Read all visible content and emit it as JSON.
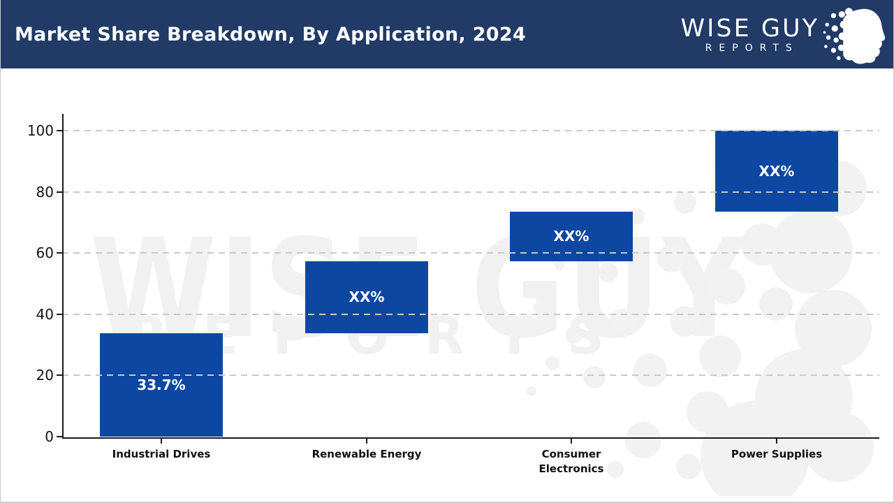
{
  "header": {
    "title": "Market Share Breakdown, By Application, 2024",
    "logo": {
      "line1": "WISE GUY",
      "line2": "REPORTS"
    }
  },
  "watermark": {
    "line1": "WISE GUY",
    "line2": "REPORTS"
  },
  "colors": {
    "header_bg": "#213a66",
    "bar_fill": "#0d47a1",
    "bar_label_text": "#ffffff",
    "gridline": "#c9c9c9",
    "axis": "#1a1a1a",
    "watermark": "#f1f1f1"
  },
  "chart_data": {
    "type": "bar",
    "subtype": "waterfall",
    "title": "Market Share Breakdown, By Application, 2024",
    "xlabel": "",
    "ylabel": "",
    "categories": [
      "Industrial Drives",
      "Renewable Energy",
      "Consumer Electronics",
      "Power Supplies"
    ],
    "bars": [
      {
        "category": "Industrial Drives",
        "category_lines": [
          "Industrial Drives"
        ],
        "start": 0,
        "end": 33.7,
        "value": 33.7,
        "label": "33.7%"
      },
      {
        "category": "Renewable Energy",
        "category_lines": [
          "Renewable Energy"
        ],
        "start": 33.7,
        "end": 57.4,
        "value": 23.7,
        "label": "XX%"
      },
      {
        "category": "Consumer Electronics",
        "category_lines": [
          "Consumer",
          "Electronics"
        ],
        "start": 57.4,
        "end": 73.5,
        "value": 16.1,
        "label": "XX%"
      },
      {
        "category": "Power Supplies",
        "category_lines": [
          "Power Supplies"
        ],
        "start": 73.5,
        "end": 100,
        "value": 26.5,
        "label": "XX%"
      }
    ],
    "yticks": [
      0,
      20,
      40,
      60,
      80,
      100
    ],
    "ylim": [
      0,
      105
    ],
    "grid": "dashed horizontal",
    "legend": "none"
  }
}
